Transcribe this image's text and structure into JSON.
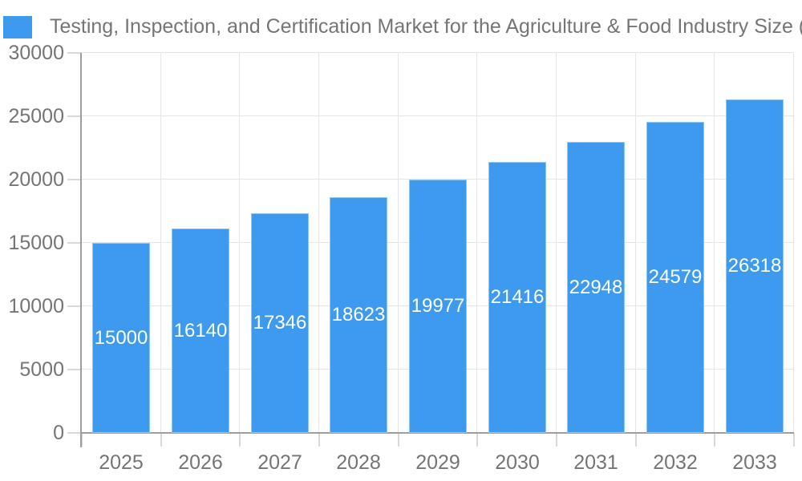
{
  "chart_data": {
    "type": "bar",
    "legend_label": "Testing, Inspection, and Certification Market for the Agriculture & Food Industry Size (Mill",
    "legend_position": "top",
    "categories": [
      "2025",
      "2026",
      "2027",
      "2028",
      "2029",
      "2030",
      "2031",
      "2032",
      "2033"
    ],
    "values": [
      15000,
      16140,
      17346,
      18623,
      19977,
      21416,
      22948,
      24579,
      26318
    ],
    "bar_value_labels": [
      "15000",
      "16140",
      "17346",
      "18623",
      "19977",
      "21416",
      "22948",
      "24579",
      "26318"
    ],
    "ytick_labels": [
      "0",
      "5000",
      "10000",
      "15000",
      "20000",
      "25000",
      "30000"
    ],
    "ylim": [
      0,
      30000
    ],
    "ytick_step": 5000,
    "xlabel": "",
    "ylabel": "",
    "grid": true,
    "colors": {
      "bar_fill": "#3D9AEF",
      "bar_border": "#8FC7F5",
      "gridline": "#E6E6E6",
      "tick": "#D9D9D9",
      "axis_line": "#9E9E9E",
      "axis_text": "#757575",
      "value_label_text": "#FFFFFF",
      "background": "#FFFFFF"
    }
  }
}
